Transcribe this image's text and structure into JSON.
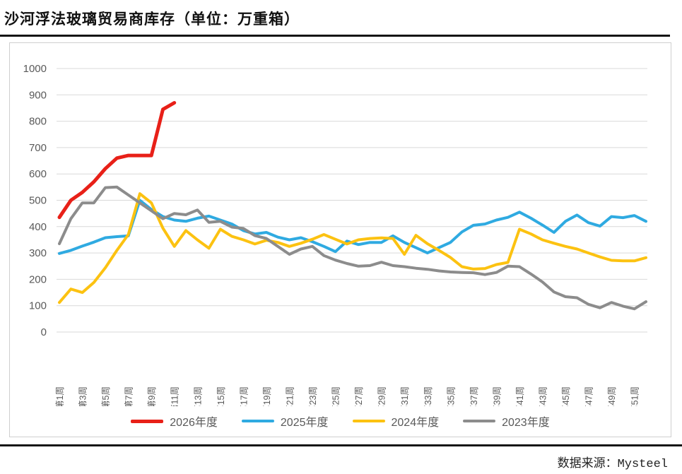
{
  "page": {
    "title": "沙河浮法玻璃贸易商库存（单位：万重箱）",
    "source": "数据来源：Mysteel"
  },
  "colors": {
    "red_2026": "#e82018",
    "blue_2025": "#2faae1",
    "yellow_2024": "#fcc211",
    "gray_2023": "#8c8c8c",
    "gridline": "#d9d9d9",
    "axis_text": "#595959",
    "frame_border": "#cfcfcf",
    "rule_black": "#141414"
  },
  "chart_data": {
    "type": "line",
    "title": "沙河浮法玻璃贸易商库存（单位：万重箱）",
    "ylim": [
      0,
      1000
    ],
    "y_ticks": [
      0,
      100,
      200,
      300,
      400,
      500,
      600,
      700,
      800,
      900,
      1000
    ],
    "x_weeks": 52,
    "x_tick_labels": [
      "第1周",
      "第3周",
      "第5周",
      "第7周",
      "第9周",
      "第11周",
      "第13周",
      "第15周",
      "第17周",
      "第19周",
      "第21周",
      "第23周",
      "第25周",
      "第27周",
      "第29周",
      "第31周",
      "第33周",
      "第35周",
      "第37周",
      "第39周",
      "第41周",
      "第43周",
      "第45周",
      "第47周",
      "第49周",
      "第51周"
    ],
    "grid": true,
    "legend_position": "bottom",
    "series": [
      {
        "name": "2026年度",
        "color": "#e82018",
        "stroke_width": 5,
        "values": [
          435,
          500,
          530,
          570,
          620,
          660,
          670,
          670,
          670,
          845,
          870
        ]
      },
      {
        "name": "2025年度",
        "color": "#2faae1",
        "stroke_width": 4,
        "values": [
          298,
          310,
          326,
          341,
          358,
          362,
          365,
          500,
          465,
          438,
          425,
          420,
          432,
          440,
          425,
          410,
          385,
          372,
          378,
          360,
          350,
          358,
          343,
          325,
          305,
          345,
          332,
          340,
          340,
          365,
          340,
          320,
          300,
          320,
          340,
          380,
          405,
          410,
          425,
          435,
          455,
          432,
          406,
          378,
          420,
          444,
          415,
          402,
          438,
          434,
          442,
          420
        ]
      },
      {
        "name": "2024年度",
        "color": "#fcc211",
        "stroke_width": 4,
        "values": [
          112,
          163,
          150,
          188,
          244,
          310,
          370,
          525,
          490,
          394,
          325,
          385,
          350,
          318,
          390,
          363,
          350,
          334,
          348,
          340,
          325,
          337,
          352,
          370,
          352,
          334,
          350,
          355,
          357,
          355,
          295,
          367,
          335,
          310,
          283,
          248,
          239,
          241,
          256,
          264,
          390,
          372,
          350,
          337,
          325,
          315,
          300,
          285,
          272,
          270,
          270,
          282
        ]
      },
      {
        "name": "2023年度",
        "color": "#8c8c8c",
        "stroke_width": 4,
        "values": [
          335,
          430,
          490,
          490,
          548,
          550,
          520,
          490,
          460,
          430,
          450,
          445,
          463,
          416,
          420,
          398,
          393,
          366,
          355,
          325,
          295,
          315,
          325,
          290,
          273,
          260,
          250,
          252,
          265,
          252,
          248,
          242,
          238,
          232,
          228,
          226,
          225,
          218,
          226,
          250,
          248,
          220,
          190,
          152,
          134,
          130,
          105,
          92,
          112,
          98,
          88,
          115
        ]
      }
    ]
  }
}
